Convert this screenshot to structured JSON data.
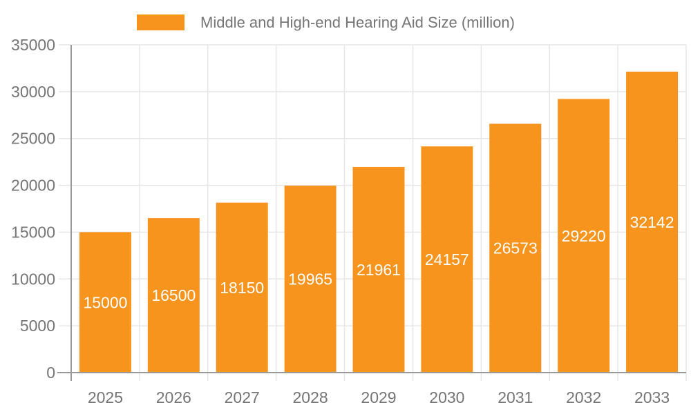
{
  "chart_data": {
    "type": "bar",
    "title": "",
    "categories": [
      "2025",
      "2026",
      "2027",
      "2028",
      "2029",
      "2030",
      "2031",
      "2032",
      "2033"
    ],
    "series": [
      {
        "name": "Middle and High-end Hearing Aid Size (million)",
        "values": [
          15000,
          16500,
          18150,
          19965,
          21961,
          24157,
          26573,
          29220,
          32142
        ],
        "color": "#F7941E"
      }
    ],
    "xlabel": "",
    "ylabel": "",
    "ylim": [
      0,
      35000
    ],
    "ytick_step": 5000,
    "ytick_labels": [
      "0",
      "5000",
      "10000",
      "15000",
      "20000",
      "25000",
      "30000",
      "35000"
    ],
    "grid": true,
    "legend_position": "top-center",
    "bar_label_position": "inside-center",
    "bar_label_color": "#FFFFFF",
    "gridline_color": "#E6E6E6",
    "axis_color": "#999999",
    "tick_label_color": "#757575",
    "legend_text_color": "#757575",
    "background_color": "#FFFFFF"
  }
}
